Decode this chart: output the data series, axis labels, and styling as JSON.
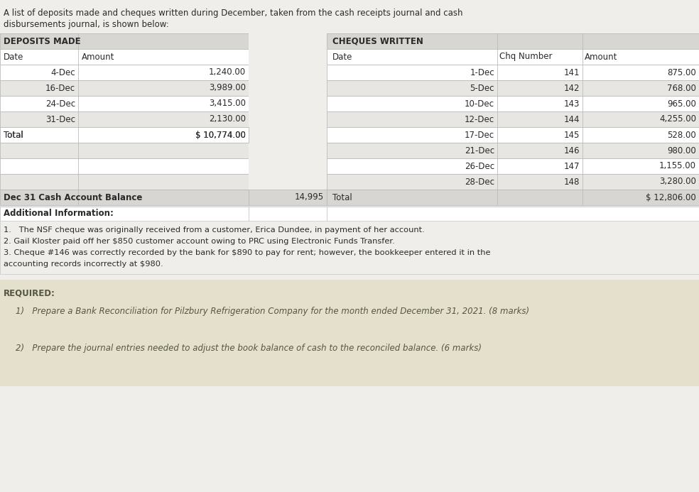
{
  "intro_text_line1": "A list of deposits made and cheques written during December, taken from the cash receipts journal and cash",
  "intro_text_line2": "disbursements journal, is shown below:",
  "deposits_header": "DEPOSITS MADE",
  "deposits_col_date": "Date",
  "deposits_col_amount": "Amount",
  "deposits": [
    [
      "4-Dec",
      "1,240.00"
    ],
    [
      "16-Dec",
      "3,989.00"
    ],
    [
      "24-Dec",
      "3,415.00"
    ],
    [
      "31-Dec",
      "2,130.00"
    ]
  ],
  "deposits_total_label": "Total",
  "deposits_total": "$ 10,774.00",
  "cheques_header": "CHEQUES WRITTEN",
  "cheques_col_date": "Date",
  "cheques_col_chqnum": "Chq Number",
  "cheques_col_amount": "Amount",
  "cheques": [
    [
      "1-Dec",
      "141",
      "875.00"
    ],
    [
      "5-Dec",
      "142",
      "768.00"
    ],
    [
      "10-Dec",
      "143",
      "965.00"
    ],
    [
      "12-Dec",
      "144",
      "4,255.00"
    ],
    [
      "17-Dec",
      "145",
      "528.00"
    ],
    [
      "21-Dec",
      "146",
      "980.00"
    ],
    [
      "26-Dec",
      "147",
      "1,155.00"
    ],
    [
      "28-Dec",
      "148",
      "3,280.00"
    ]
  ],
  "cheques_total_label": "Total",
  "cheques_total": "$ 12,806.00",
  "balance_label": "Dec 31 Cash Account Balance",
  "balance_value": "14,995",
  "additional_info_header": "Additional Information:",
  "additional_info_lines": [
    "1.   The NSF cheque was originally received from a customer, Erica Dundee, in payment of her account.",
    "2. Gail Kloster paid off her $850 customer account owing to PRC using Electronic Funds Transfer.",
    "3. Cheque #146 was correctly recorded by the bank for $890 to pay for rent; however, the bookkeeper entered it in the",
    "accounting records incorrectly at $980."
  ],
  "required_header": "REQUIRED:",
  "required_item1": "1)   Prepare a Bank Reconciliation for Pilzbury Refrigeration Company for the month ended December 31, 2021. (8 marks)",
  "required_item2": "2)   Prepare the journal entries needed to adjust the book balance of cash to the reconciled balance. (6 marks)",
  "bg_color": "#f0eeea",
  "table_bg_white": "#ffffff",
  "table_bg_light": "#ebebeb",
  "header_row_bg": "#d8d6d2",
  "col_header_bg": "#ffffff",
  "required_bg": "#e5e0cc",
  "border_color": "#bbbbbb",
  "text_dark": "#2a2a2a",
  "text_gray": "#555544",
  "row_alt_bg": "#e8e6e3"
}
